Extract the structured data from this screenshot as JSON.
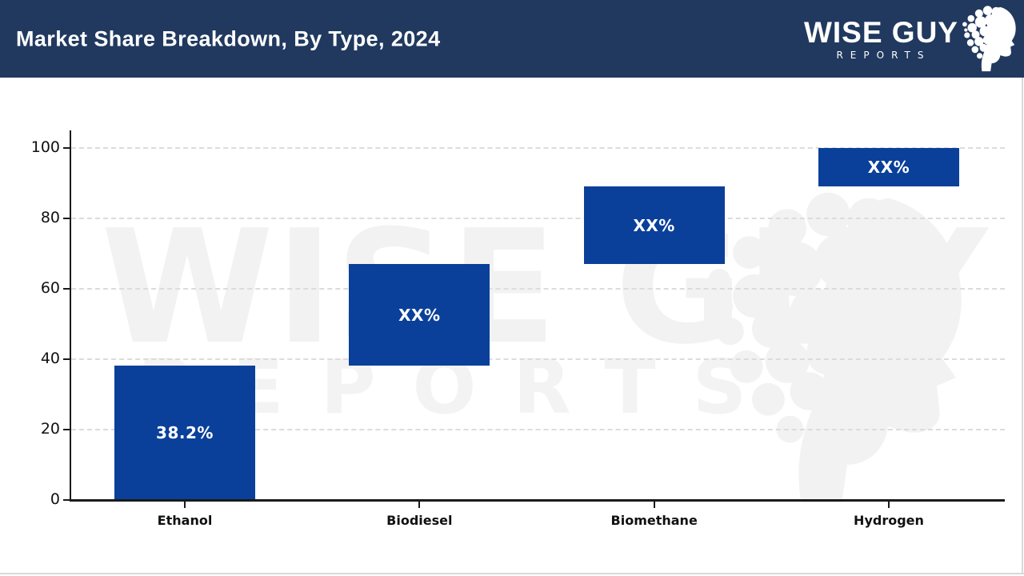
{
  "header": {
    "title": "Market Share Breakdown, By Type, 2024",
    "logo": {
      "line1": "WISE GUY",
      "line2": "REPORTS"
    }
  },
  "watermark": {
    "line1": "WISE GUY",
    "line2": "REPORTS"
  },
  "chart_data": {
    "type": "bar",
    "subtype": "waterfall",
    "title": "Market Share Breakdown, By Type, 2024",
    "categories": [
      "Ethanol",
      "Biodiesel",
      "Biomethane",
      "Hydrogen"
    ],
    "segments": [
      {
        "category": "Ethanol",
        "start": 0,
        "end": 38.2,
        "label": "38.2%"
      },
      {
        "category": "Biodiesel",
        "start": 38.2,
        "end": 67,
        "label": "XX%"
      },
      {
        "category": "Biomethane",
        "start": 67,
        "end": 89,
        "label": "XX%"
      },
      {
        "category": "Hydrogen",
        "start": 89,
        "end": 100,
        "label": "XX%"
      }
    ],
    "yticks": [
      0,
      20,
      40,
      60,
      80,
      100
    ],
    "ylim": [
      0,
      105
    ],
    "xlabel": "",
    "ylabel": "",
    "grid": "horizontal-dashed",
    "legend": "none",
    "bar_color": "#0a409a",
    "bar_label_color": "#ffffff"
  },
  "colors": {
    "header_bg": "#21395f",
    "watermark": "#f2f2f2",
    "gridline": "#dcdcdc",
    "axis": "#1a1a1a"
  }
}
